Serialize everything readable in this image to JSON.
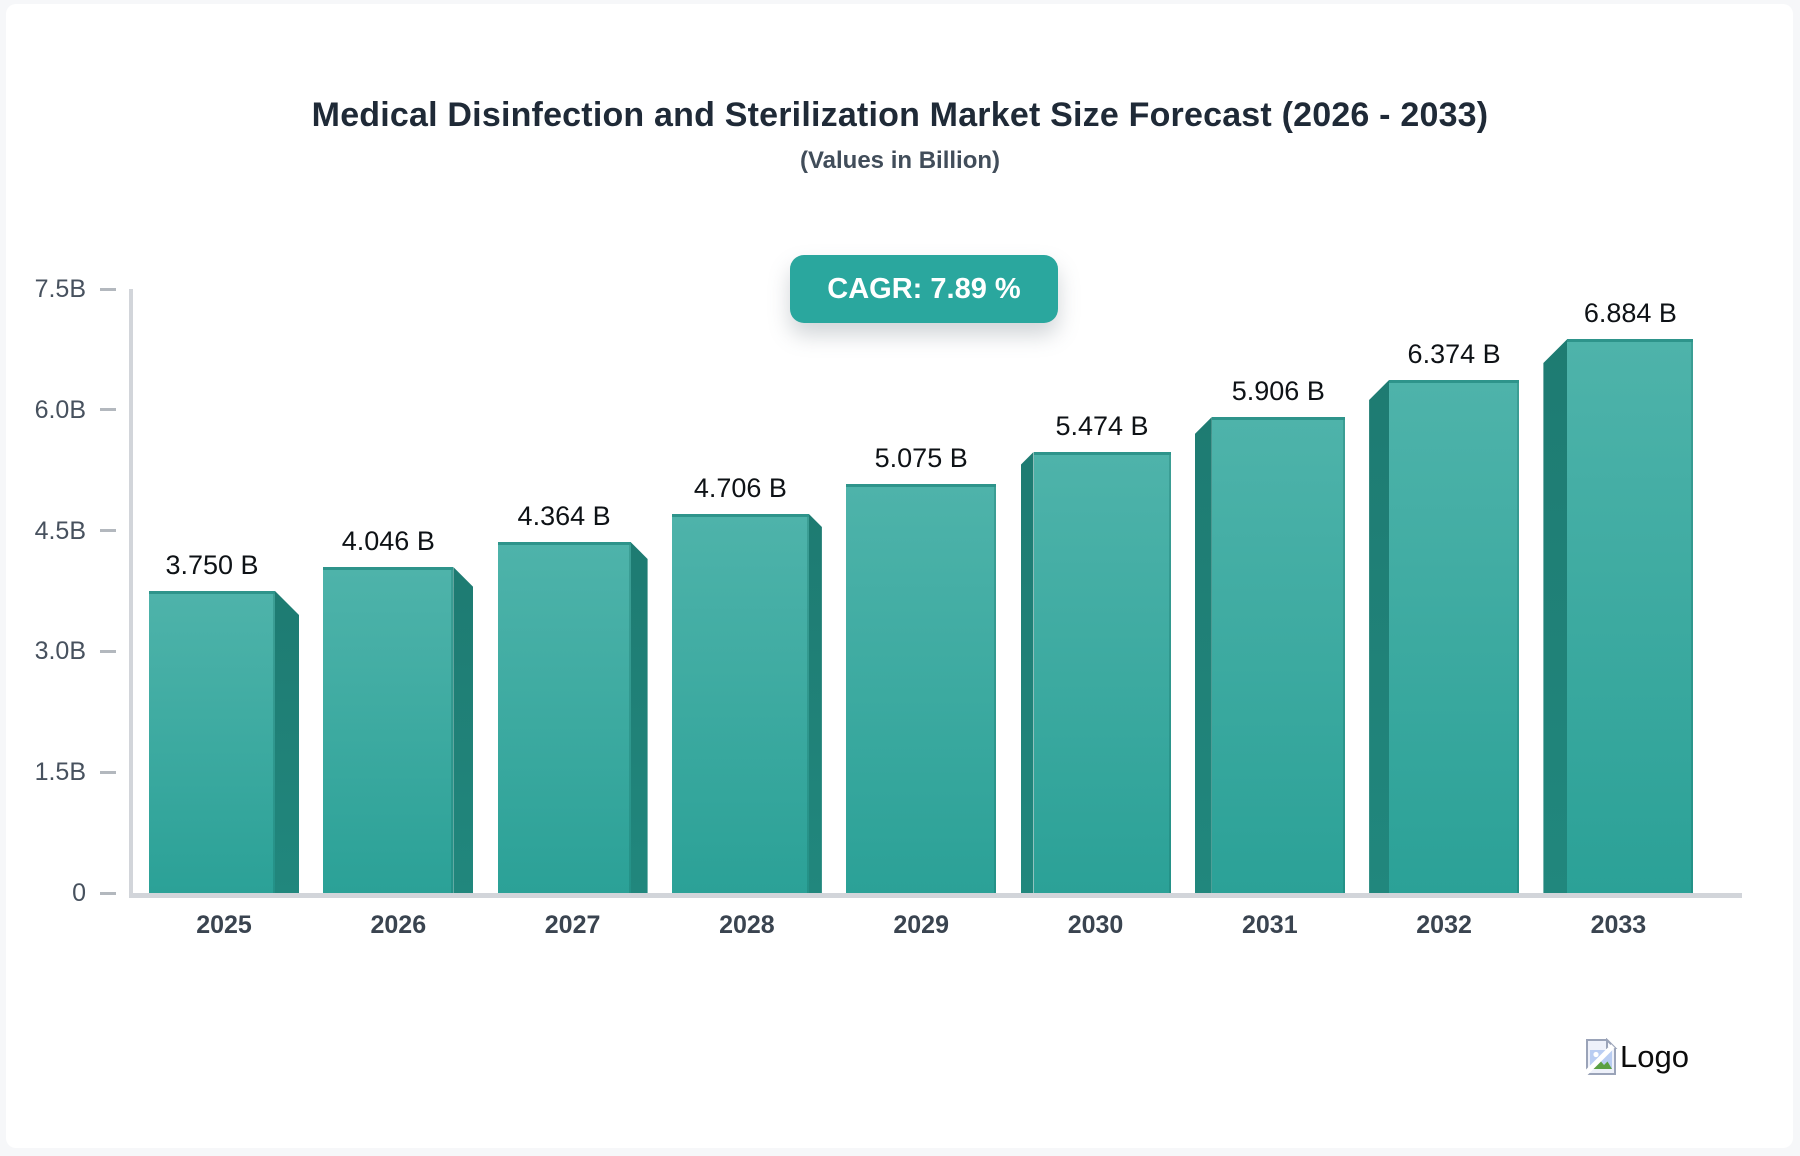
{
  "header": {
    "title": "Medical Disinfection and Sterilization Market Size Forecast (2026 - 2033)",
    "subtitle": "(Values in Billion)"
  },
  "badge": {
    "label": "CAGR: 7.89 %",
    "background": "#2aa79e",
    "text_color": "#ffffff"
  },
  "logo": {
    "text": "Logo",
    "icon": "broken-image-icon"
  },
  "chart_data": {
    "type": "bar",
    "title": "Medical Disinfection and Sterilization Market Size Forecast (2026 - 2033)",
    "subtitle": "(Values in Billion)",
    "categories": [
      "2025",
      "2026",
      "2027",
      "2028",
      "2029",
      "2030",
      "2031",
      "2032",
      "2033"
    ],
    "values": [
      3.75,
      4.046,
      4.364,
      4.706,
      5.075,
      5.474,
      5.906,
      6.374,
      6.884
    ],
    "value_labels": [
      "3.750 B",
      "4.046 B",
      "4.364 B",
      "4.706 B",
      "5.075 B",
      "5.474 B",
      "5.906 B",
      "6.374 B",
      "6.884 B"
    ],
    "xlabel": "",
    "ylabel": "",
    "ylim": [
      0,
      7.5
    ],
    "yticks": [
      {
        "label": "7.5B",
        "value": 7.5
      },
      {
        "label": "6.0B",
        "value": 6.0
      },
      {
        "label": "4.5B",
        "value": 4.5
      },
      {
        "label": "3.0B",
        "value": 3.0
      },
      {
        "label": "1.5B",
        "value": 1.5
      },
      {
        "label": "0",
        "value": 0
      }
    ],
    "legend": "none",
    "grid": false,
    "style": "3d-perspective-bars-center-vanishing-point",
    "colors": {
      "bar_top": "#4eb3aa",
      "bar_bottom": "#2ba197",
      "bar_side": "#1e7b72",
      "bar_side_light": "#21877d",
      "bar_top_edge": "#2e948b",
      "axis_line": "#d2d5da",
      "tick_dash": "#b3b8be",
      "tick_text": "#47515e",
      "category_text": "#3a4450",
      "value_text": "#0e1216",
      "accent": "#2aa79e"
    }
  }
}
